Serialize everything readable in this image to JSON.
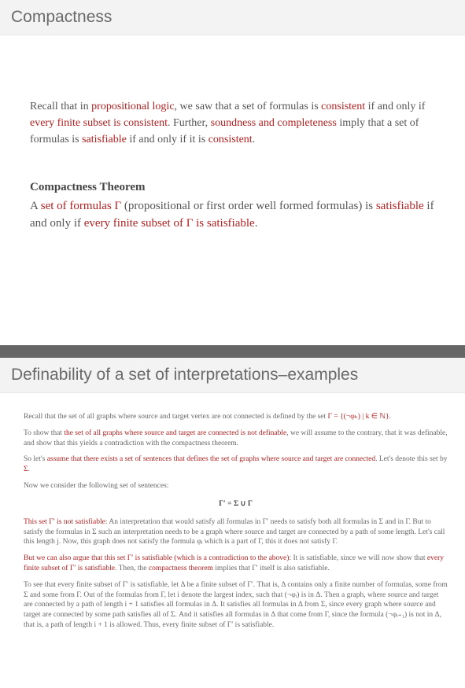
{
  "slide1": {
    "title": "Compactness",
    "para1_parts": {
      "t1": "Recall that in ",
      "r1": "propositional logic",
      "t2": ", we saw that a set of formulas is ",
      "r2": "consistent",
      "t3": " if and only if ",
      "r3": "every finite subset is consistent",
      "t4": ". Further, ",
      "r4": "soundness and completeness",
      "t5": " imply that a set of formulas is ",
      "r5": "satisfiable",
      "t6": " if and only if it is ",
      "r6": "consistent",
      "t7": "."
    },
    "theorem": {
      "header": "Compactness Theorem",
      "t1": "A ",
      "r1": "set of formulas Γ",
      "t2": " (propositional or first order well formed formulas) is ",
      "r2": "satisfiable",
      "t3": " if and only if ",
      "r3": "every finite subset of Γ is satisfiable",
      "t4": "."
    }
  },
  "slide2": {
    "title": "Definability of a set of interpretations–examples",
    "p1": {
      "t1": "Recall that the set of all graphs where source and target vertex are not connected is defined by the set ",
      "r1": "Γ = {(¬φₖ) | k ∈ ℕ}",
      "t2": "."
    },
    "p2": {
      "t1": "To show that ",
      "r1": "the set of all graphs where source and target are connected is not definable",
      "t2": ", we will assume to the contrary, that it was definable, and show that this yields a contradiction with the compactness theorem."
    },
    "p3": {
      "t1": "So let's ",
      "r1": "assume that there exists a set of sentences that defines the set of graphs where source and target are connected",
      "t2": ". Let's denote this set by ",
      "r2": "Σ",
      "t3": "."
    },
    "p4": "Now we consider the following set of sentences:",
    "eq": "Γ′ = Σ ∪ Γ",
    "p5": {
      "r1": "This set Γ′ is not satisfiable",
      "t1": ": An interpretation that would satisfy all formulas in Γ′ needs to satisfy both all formulas in Σ and in Γ. But to satisfy the formulas in Σ such an interpretation needs to be a graph where source and target are connected by a path of some length. Let's call this length j. Now, this graph does not satisfy the formula φⱼ which is a part of Γ, this it does not satisfy Γ."
    },
    "p6": {
      "r1": "But we can also argue that this set Γ′ is satisfiable (which is a contradiction to the above)",
      "t1": ": It is satisfiable, since we will now show that ",
      "r2": "every finite subset of Γ′ is satisfiable",
      "t2": ". Then, the ",
      "r3": "compactness theorem",
      "t3": " implies that Γ′ itself is also satisfiable."
    },
    "p7": "To see that every finite subset of Γ′ is satisfiable, let Δ be a finite subset of Γ′. That is, Δ contains only a finite number of formulas, some from Σ and some from Γ. Out of the formulas from Γ, let i denote the largest index, such that (¬φᵢ) is in Δ. Then a graph, where source and target are connected by a path of length i + 1 satisfies all formulas in Δ. It satisfies all formulas in Δ from Σ, since every graph where source and target are connected by some path satisfies all of Σ. And it satisfies all formulas in Δ that come from Γ, since the formula (¬φᵢ₊₁) is not in Δ, that is, a path of length i + 1 is allowed. Thus, every finite subset of Γ′ is satisfiable."
  }
}
